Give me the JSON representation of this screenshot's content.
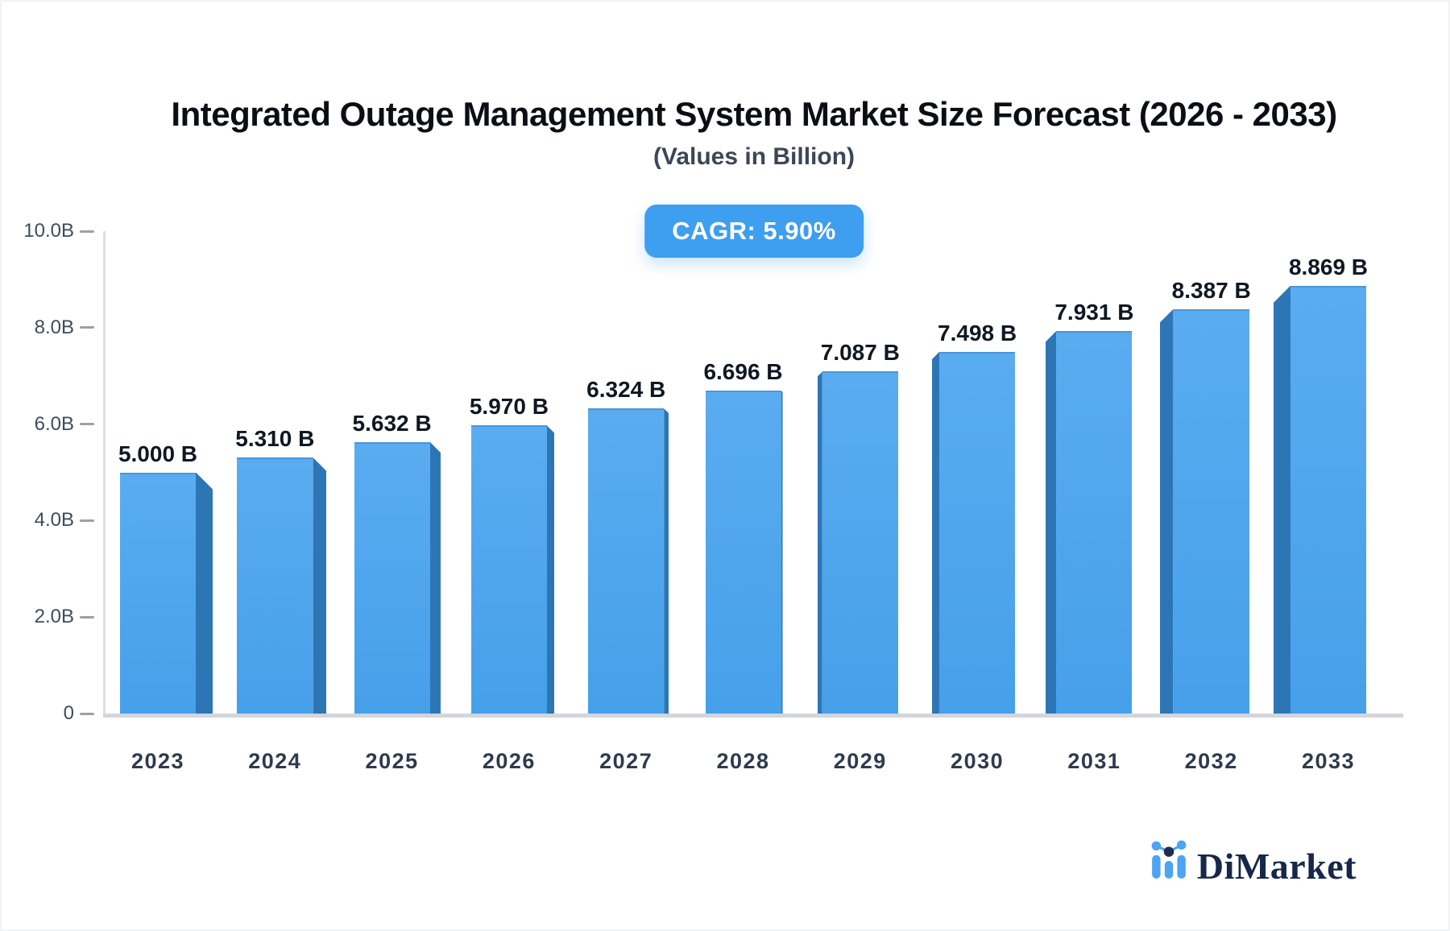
{
  "title": "Integrated Outage Management System Market Size Forecast (2026 - 2033)",
  "subtitle": "(Values in Billion)",
  "badge": {
    "label": "CAGR: 5.90%"
  },
  "branding": {
    "name": "DiMarket",
    "icon": "bar-chart-logo-icon"
  },
  "chart_data": {
    "type": "bar",
    "title": "Integrated Outage Management System Market Size Forecast (2026 - 2033)",
    "subtitle": "(Values in Billion)",
    "cagr": "5.90%",
    "categories": [
      "2023",
      "2024",
      "2025",
      "2026",
      "2027",
      "2028",
      "2029",
      "2030",
      "2031",
      "2032",
      "2033"
    ],
    "values": [
      5.0,
      5.31,
      5.632,
      5.97,
      6.324,
      6.696,
      7.087,
      7.498,
      7.931,
      8.387,
      8.869
    ],
    "value_labels": [
      "5.000 B",
      "5.310 B",
      "5.632 B",
      "5.970 B",
      "6.324 B",
      "6.696 B",
      "7.087 B",
      "7.498 B",
      "7.931 B",
      "8.387 B",
      "8.869 B"
    ],
    "xlabel": "",
    "ylabel": "",
    "ylim": [
      0,
      10
    ],
    "yticks": [
      {
        "value": 10,
        "label": "10.0B"
      },
      {
        "value": 8,
        "label": "8.0B"
      },
      {
        "value": 6,
        "label": "6.0B"
      },
      {
        "value": 4,
        "label": "4.0B"
      },
      {
        "value": 2,
        "label": "2.0B"
      },
      {
        "value": 0,
        "label": "0"
      }
    ],
    "grid": false,
    "legend": "none",
    "colors": {
      "bar_face_top": "#5aacf0",
      "bar_face_bottom": "#46a0ea",
      "bar_side": "#2d76b6",
      "axis": "#d8dbe0",
      "badge": "#3e9ef0",
      "logo_blue": "#4da3f5",
      "logo_navy": "#16284a"
    }
  }
}
